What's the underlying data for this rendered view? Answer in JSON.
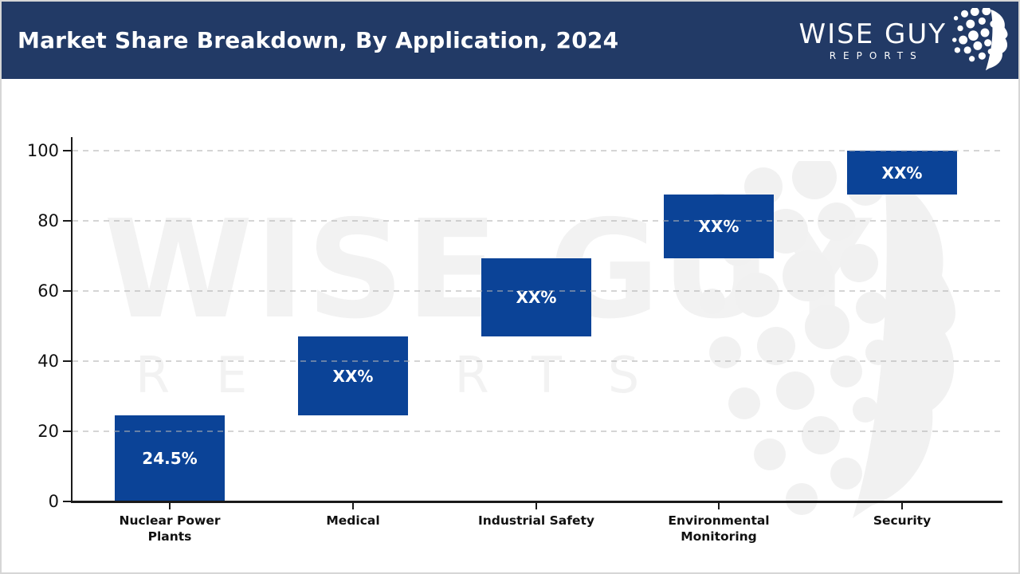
{
  "header": {
    "title": "Market Share Breakdown, By Application, 2024",
    "logo": {
      "line1": "WISE GUY",
      "line2": "REPORTS"
    }
  },
  "watermark": {
    "line1": "WISE GUY",
    "line2": "REPORTS"
  },
  "chart_data": {
    "type": "bar",
    "subtype": "waterfall",
    "title": "Market Share Breakdown, By Application, 2024",
    "xlabel": "",
    "ylabel": "",
    "categories": [
      "Nuclear Power Plants",
      "Medical",
      "Industrial Safety",
      "Environmental Monitoring",
      "Security"
    ],
    "segments": [
      {
        "category": "Nuclear Power Plants",
        "start": 0,
        "end": 24.5,
        "label": "24.5%"
      },
      {
        "category": "Medical",
        "start": 24.5,
        "end": 47,
        "label": "XX%"
      },
      {
        "category": "Industrial Safety",
        "start": 47,
        "end": 69.3,
        "label": "XX%"
      },
      {
        "category": "Environmental Monitoring",
        "start": 69.3,
        "end": 87.5,
        "label": "XX%"
      },
      {
        "category": "Security",
        "start": 87.5,
        "end": 100,
        "label": "XX%"
      }
    ],
    "y_ticks": [
      0,
      20,
      40,
      60,
      80,
      100
    ],
    "ylim": [
      0,
      104
    ],
    "bar_color": "#0b4397",
    "grid": true,
    "grid_style": "dashed",
    "legend": false
  }
}
